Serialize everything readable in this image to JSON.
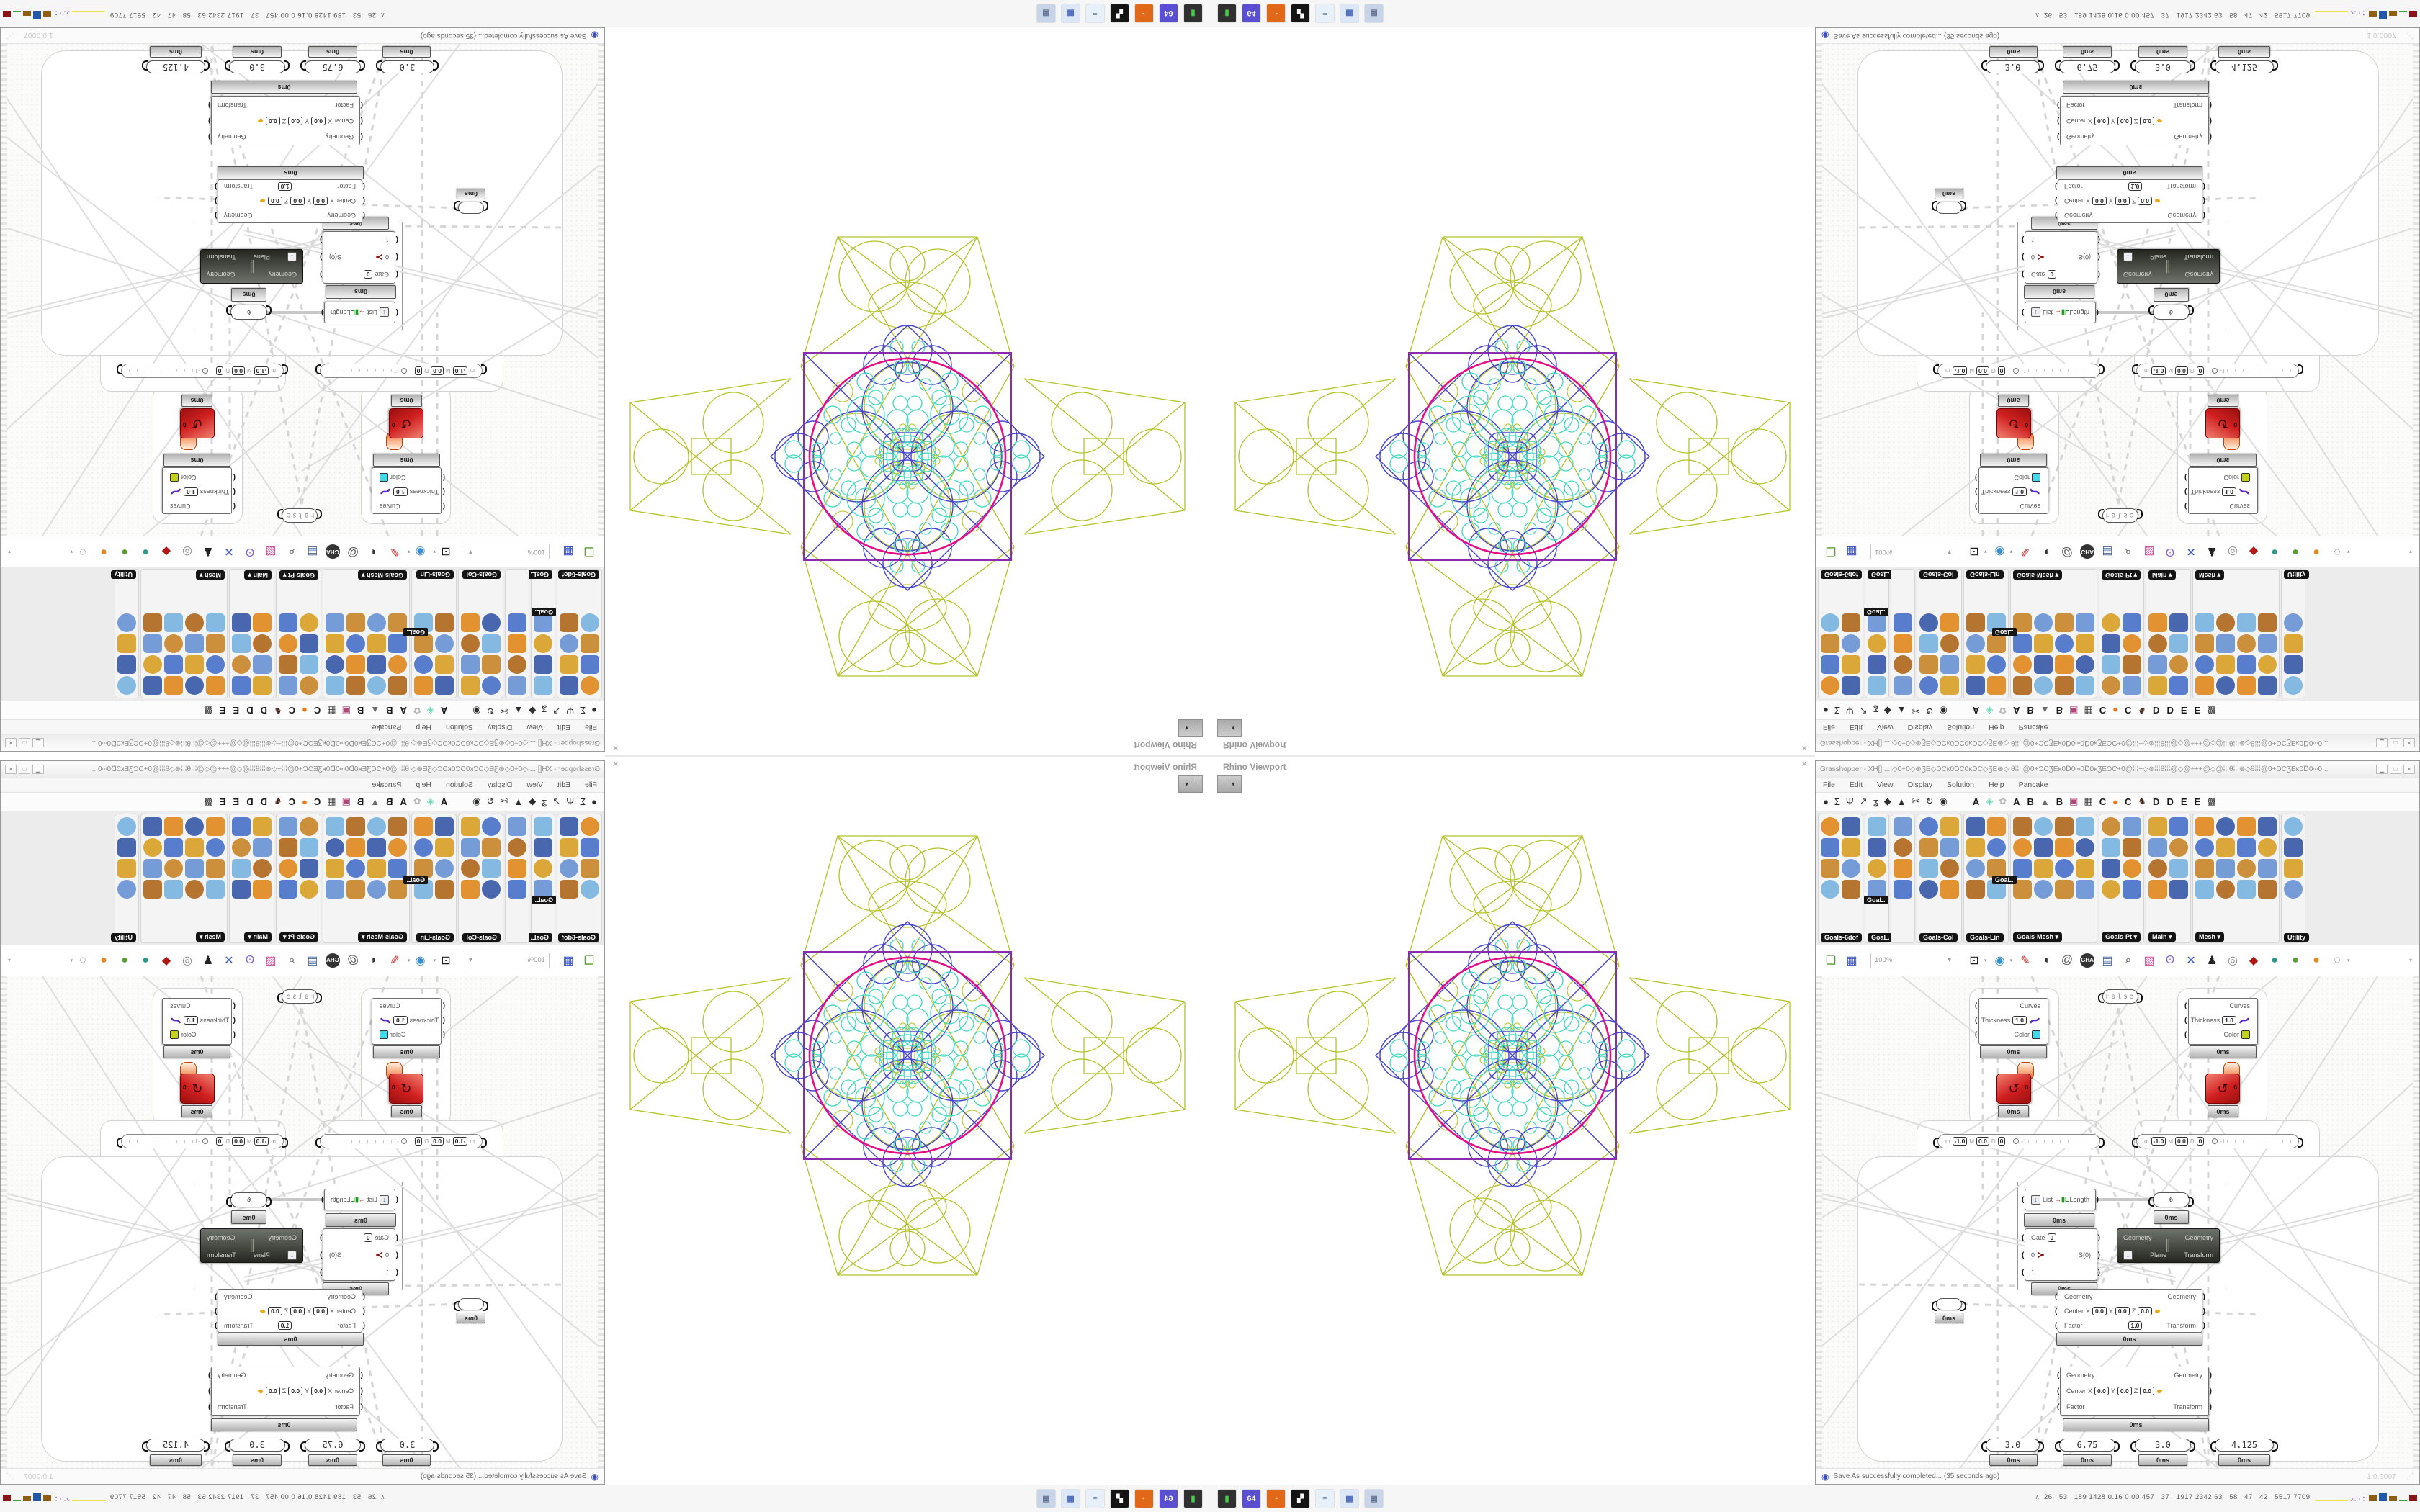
{
  "colors": {
    "pat_olive": "#b5c226",
    "pat_blue": "#4545cc",
    "pat_cyan": "#3ed8c3",
    "pat_magenta": "#e60e86",
    "pat_purple": "#8a2bb0",
    "swatch_left": "#45d8ea",
    "swatch_right": "#c3d118",
    "red_component": "#cc2020"
  },
  "viewport": {
    "label": "Rhino Viewport",
    "close": "✕",
    "dropdown": "▾",
    "dropbar": "▏"
  },
  "window": {
    "title": "Grasshopper - XH[].....◇0+0◇⊛ƷE◇ƆCĸ0ƆC0ĸƆC◇ƷE⊛◇ θ⁞⁞⁞ @0+ƆCƷEĸ0Ⅾ0∞0Ⅾ0ĸƷEƆC+0@⁞⁞⁞+◇⊛⁞⁞⁞θ⁞⁞⁞@◇@÷++@◇@⁞⁞⁞θ⁞⁞⁞⊛◇θ⁞⁞⁞@0+ƆCƷEĸ0Ⅾ0∞0...",
    "min": "▁",
    "max": "□",
    "close": "✕"
  },
  "menu": {
    "items": [
      "File",
      "Edit",
      "View",
      "Display",
      "Solution",
      "Help",
      "Pancake"
    ]
  },
  "tabbar": {
    "items": [
      {
        "g": "●"
      },
      {
        "g": "Σ"
      },
      {
        "g": "Ψ"
      },
      {
        "g": "↗"
      },
      {
        "g": "ʓ"
      },
      {
        "g": "◆"
      },
      {
        "g": "▲"
      },
      {
        "g": "✂"
      },
      {
        "g": "↻"
      },
      {
        "g": "◉"
      },
      {
        "sp": true
      },
      {
        "t": "A"
      },
      {
        "g": "◈",
        "c": "#69d9b8"
      },
      {
        "g": "✿",
        "c": "#b8b8b8"
      },
      {
        "t": "A"
      },
      {
        "t": "B"
      },
      {
        "g": "▲",
        "c": "#6a6a6a"
      },
      {
        "t": "B"
      },
      {
        "g": "▣",
        "c": "#b04878"
      },
      {
        "g": "▦",
        "c": "#333333"
      },
      {
        "t": "C"
      },
      {
        "g": "●",
        "c": "#e87818"
      },
      {
        "t": "C"
      },
      {
        "g": "♞",
        "c": "#46281c"
      },
      {
        "t": "D"
      },
      {
        "t": "D"
      },
      {
        "t": "E"
      },
      {
        "t": "E"
      },
      {
        "g": "▩",
        "c": "#333333"
      }
    ]
  },
  "toolbar": {
    "tooltip": "GoaL.",
    "groups": [
      {
        "label": "Goals-6dof",
        "cols": 2,
        "arrow": false
      },
      {
        "label": "GoaL.",
        "cols": 1,
        "arrow": false
      },
      {
        "label": "",
        "cols": 1,
        "arrow": false
      },
      {
        "label": "Goals-Col",
        "cols": 2,
        "arrow": false
      },
      {
        "label": "Goals-Lin",
        "cols": 2,
        "arrow": false
      },
      {
        "label": "Goals-Mesh",
        "cols": 4,
        "arrow": true
      },
      {
        "label": "Goals-Pt",
        "cols": 2,
        "arrow": true
      },
      {
        "label": "Main",
        "cols": 2,
        "arrow": true
      },
      {
        "label": "Mesh",
        "cols": 4,
        "arrow": true
      },
      {
        "label": "Utility",
        "cols": 1,
        "arrow": false
      }
    ]
  },
  "canvas_toolbar": {
    "zoom": "100%",
    "items": [
      {
        "n": "open-file-icon",
        "g": "❏",
        "c": "#57a02f"
      },
      {
        "n": "save-file-icon",
        "g": "▦",
        "c": "#3a57c8"
      },
      {
        "n": "zoom-combo"
      },
      {
        "n": "zoom-extents-icon",
        "g": "⊡",
        "c": "#222222",
        "dd": 1
      },
      {
        "n": "preview-eye-icon",
        "g": "◉",
        "c": "#3a8fd0",
        "dd": 1
      },
      {
        "n": "sketch-pen-icon",
        "g": "✎",
        "c": "#c42222"
      },
      {
        "n": "solver-toggle-icon",
        "g": "◖",
        "c": "#333333"
      },
      {
        "n": "at-badge-icon",
        "g": "@",
        "c": "#555555"
      },
      {
        "n": "gha-badge",
        "txt": "GHA"
      },
      {
        "n": "publish-window-icon",
        "g": "▤",
        "c": "#4a6a9a"
      },
      {
        "n": "find-icon",
        "g": "⌕",
        "c": "#333333"
      },
      {
        "n": "help-package-icon",
        "g": "▧",
        "c": "#d84a9a"
      },
      {
        "n": "idea-bulb-icon",
        "g": "ʘ",
        "c": "#8a6ad0"
      },
      {
        "n": "wire-display-icon",
        "g": "✕",
        "c": "#3a5ac8"
      },
      {
        "n": "pawn-toggle-icon",
        "g": "♟",
        "c": "#222222"
      },
      {
        "n": "rings-toggle-icon",
        "g": "◎",
        "c": "#888888"
      },
      {
        "n": "gem-red-icon",
        "g": "◆",
        "c": "#b01818"
      },
      {
        "n": "pill-teal-icon",
        "g": "●",
        "c": "#2a9a8a"
      },
      {
        "n": "pill-green-icon",
        "g": "●",
        "c": "#55a02a"
      },
      {
        "n": "pill-orange-icon",
        "g": "●",
        "c": "#e08a1e"
      },
      {
        "n": "select-ellipse-icon",
        "g": "◌",
        "c": "#666666",
        "dd": 1
      }
    ]
  },
  "nodes": {
    "toggle": "False",
    "preview": {
      "in1": "Curves",
      "in2": "Thickness",
      "in3": "Color",
      "thickness": "1.0"
    },
    "time": "0ms",
    "red_badge": "0",
    "slider": {
      "m": "m",
      "mv": "-1.0",
      "M": "M",
      "Mv": "0.0",
      "D": "D",
      "Dv": "0",
      "tick": "-1"
    },
    "list": {
      "in": "List",
      "out": "Length"
    },
    "six": "6",
    "gate": {
      "lbl": "Gate",
      "g": "0",
      "a": "0",
      "b": "1",
      "out": "S(0)"
    },
    "orient": {
      "i1": "Geometry",
      "i2": "Plane",
      "o1": "Geometry",
      "o2": "Transform"
    },
    "scale": {
      "g": "Geometry",
      "c": "Center",
      "x": "X",
      "xv": "0.0",
      "y": "Y",
      "yv": "0.0",
      "z": "Z",
      "zv": "0.0",
      "f": "Factor",
      "fv": "1.0",
      "og": "Geometry",
      "ot": "Transform"
    },
    "values": [
      "3.0",
      "6.75",
      "3.0",
      "4.125"
    ]
  },
  "statusbar": {
    "message": "Save As successfully completed... (35 seconds ago)",
    "version": "1.0.0007",
    "grip": "⋰"
  },
  "taskbar": {
    "monitor": "26   53   189 1428 0.16 0.00 457   37   1917 2342 63   58   47   42   5517 7709",
    "caret": "∧",
    "icons": [
      "zip-drive",
      "floppy-64",
      "firefox",
      "photo-viewer",
      "notepad",
      "calculator",
      "printer"
    ],
    "icon_styles": [
      [
        "#303030",
        "▮",
        "#44cc44"
      ],
      [
        "#5a4fd0",
        "64",
        "#ffffff"
      ],
      [
        "#e06818",
        "◔",
        "#ffd9a0"
      ],
      [
        "#141414",
        "▞",
        "#ffffff"
      ],
      [
        "#e8f0fa",
        "≡",
        "#6a8ab0"
      ],
      [
        "#dce8f8",
        "▦",
        "#4a6ac0"
      ],
      [
        "#c8d4e8",
        "▤",
        "#5a6a8a"
      ]
    ],
    "chart": {
      "line": "#e8e448",
      "dots": "⡠⡐⠄⡂",
      "dots_color": "#7a2fb0",
      "bars": [
        {
          "c": "#905e12",
          "h": 8
        },
        {
          "c": "#2456aa",
          "h": 12
        },
        {
          "c": "#905e12",
          "h": 7
        },
        {
          "c": "#3aa03a",
          "h": 2
        },
        {
          "c": "#8a1518",
          "h": 9
        }
      ]
    }
  }
}
